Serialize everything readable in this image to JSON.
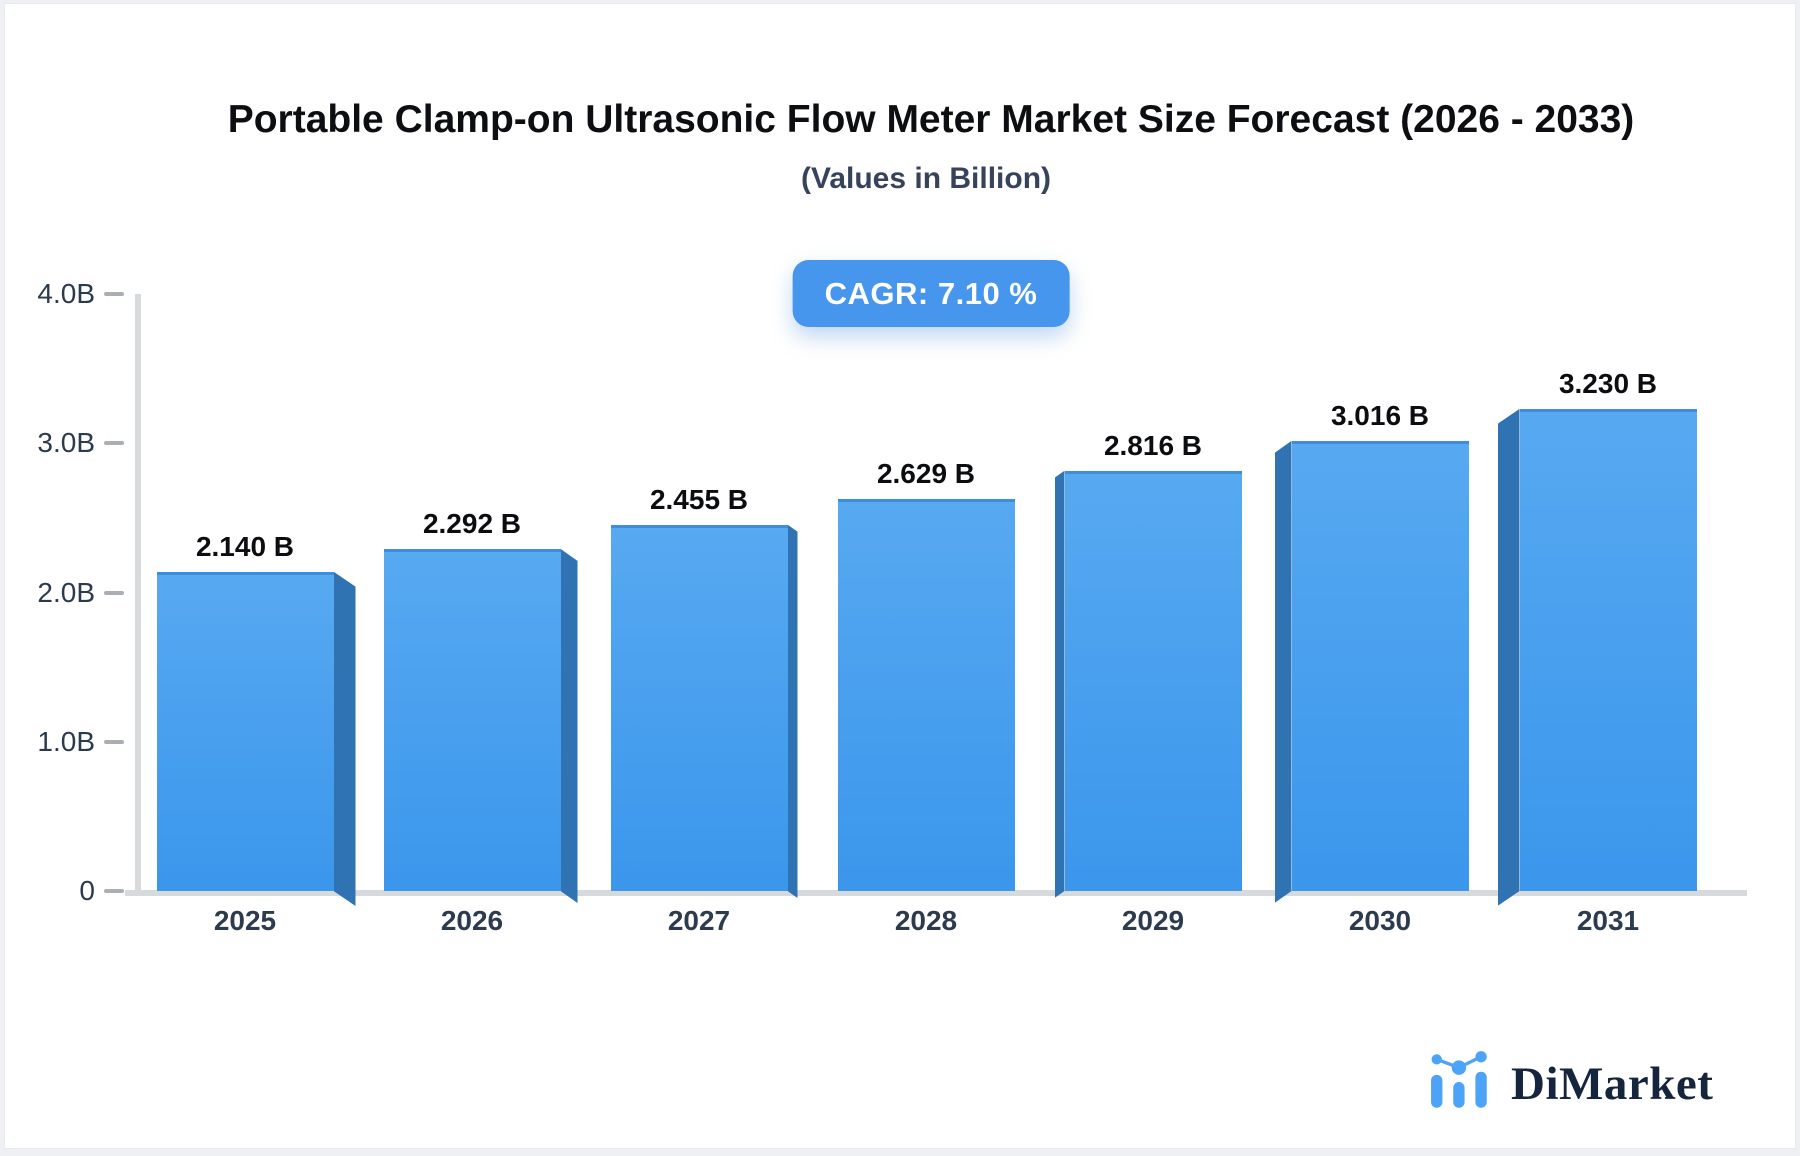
{
  "header": {
    "title": "Portable Clamp-on Ultrasonic Flow Meter Market Size Forecast (2026 - 2033)",
    "subtitle": "(Values in Billion)"
  },
  "badge": {
    "label": "CAGR: 7.10 %",
    "background": "#4596ec",
    "text_color": "#ffffff"
  },
  "chart_data": {
    "type": "bar",
    "title": "Portable Clamp-on Ultrasonic Flow Meter Market Size Forecast (2026 - 2033)",
    "subtitle": "(Values in Billion)",
    "unit": "Billion",
    "cagr_percent": 7.1,
    "categories": [
      "2025",
      "2026",
      "2027",
      "2028",
      "2029",
      "2030",
      "2031"
    ],
    "values": [
      2.14,
      2.292,
      2.455,
      2.629,
      2.816,
      3.016,
      3.23
    ],
    "value_labels": [
      "2.140 B",
      "2.292 B",
      "2.455 B",
      "2.629 B",
      "2.816 B",
      "3.016 B",
      "3.230 B"
    ],
    "ylim": [
      0,
      4
    ],
    "yticks": [
      {
        "value": 0,
        "label": "0"
      },
      {
        "value": 1,
        "label": "1.0B"
      },
      {
        "value": 2,
        "label": "2.0B"
      },
      {
        "value": 3,
        "label": "3.0B"
      },
      {
        "value": 4,
        "label": "4.0B"
      }
    ],
    "grid": false,
    "legend": "none",
    "style": "pseudo-3d bars, side faces angled toward center bar",
    "colors": {
      "bar_top": "#57a9f1",
      "bar_bottom": "#3b96ec",
      "bar_top_border": "#3f8ede",
      "bar_side": "#2f73b3",
      "axis": "#d7dadd",
      "tick": "#aaafb5",
      "tick_label": "#2c3a4e",
      "value_label": "#0b0d10",
      "category_label": "#2d3b4f"
    }
  },
  "footer": {
    "brand": "DiMarket",
    "brand_color": "#16253e",
    "icon_color": "#4da3f7"
  }
}
